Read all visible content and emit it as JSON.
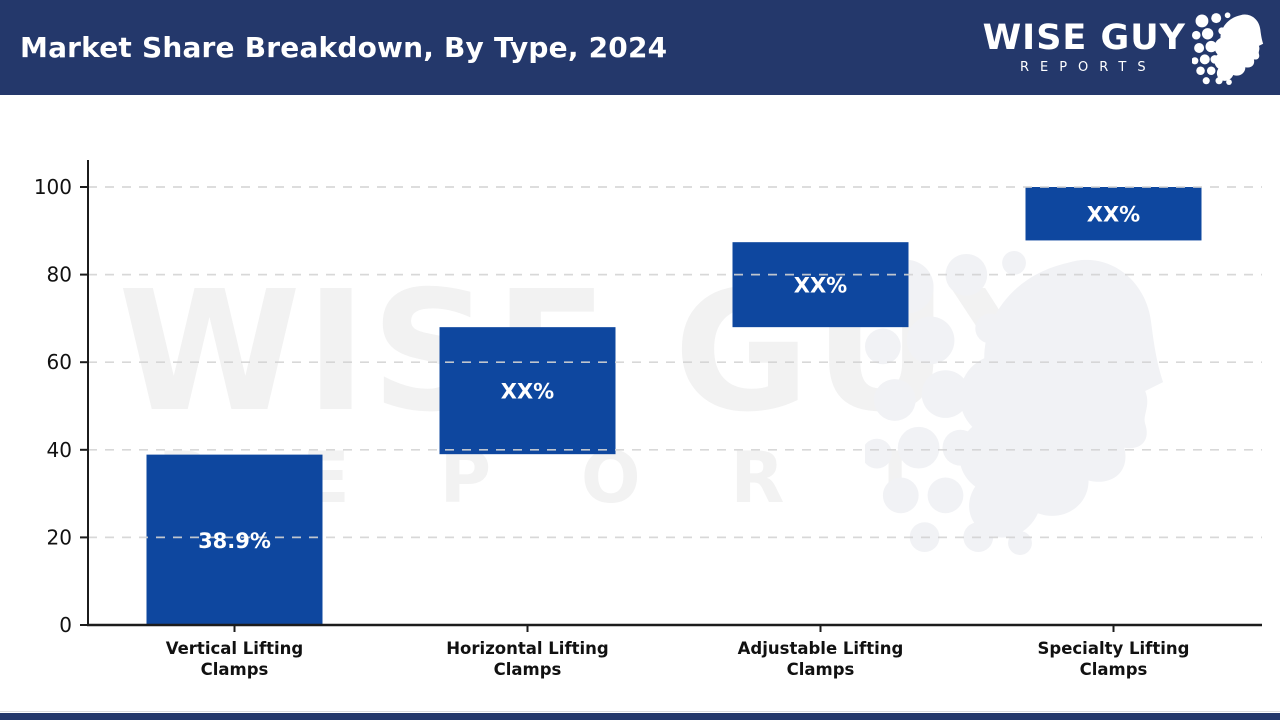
{
  "header": {
    "title": "Market Share Breakdown, By Type, 2024"
  },
  "logo": {
    "wordmark": "WISE GUY",
    "reports": "REPORTS"
  },
  "watermark": {
    "line1": "WISE GUY",
    "line2": "REPORTS"
  },
  "colors": {
    "header_bg": "#24386B",
    "footer_bg": "#24386B",
    "bar": "#0E479F",
    "bar_label": "#ffffff",
    "grid": "#d4d4d4",
    "axis": "#1c1c1c",
    "tick_text": "#111111",
    "watermark": "#f1f2f5"
  },
  "chart_data": {
    "type": "bar",
    "subtype": "stacked-waterfall",
    "title": "Market Share Breakdown, By Type, 2024",
    "xlabel": "",
    "ylabel": "",
    "ylim": [
      0,
      106
    ],
    "yticks": [
      0,
      20,
      40,
      60,
      80,
      100
    ],
    "grid": "dashed-horizontal",
    "legend": "none",
    "categories": [
      "Vertical Lifting Clamps",
      "Horizontal Lifting Clamps",
      "Adjustable Lifting Clamps",
      "Specialty Lifting Clamps"
    ],
    "categories_lines": [
      [
        "Vertical Lifting",
        "Clamps"
      ],
      [
        "Horizontal Lifting",
        "Clamps"
      ],
      [
        "Adjustable Lifting",
        "Clamps"
      ],
      [
        "Specialty Lifting",
        "Clamps"
      ]
    ],
    "segments": [
      {
        "category": "Vertical Lifting Clamps",
        "label": "38.9%",
        "start": 0,
        "end": 38.9,
        "value": 38.9
      },
      {
        "category": "Horizontal Lifting Clamps",
        "label": "XX%",
        "start": 39,
        "end": 68,
        "value": 29
      },
      {
        "category": "Adjustable Lifting Clamps",
        "label": "XX%",
        "start": 68,
        "end": 87.4,
        "value": 19.4
      },
      {
        "category": "Specialty Lifting Clamps",
        "label": "XX%",
        "start": 87.8,
        "end": 100,
        "value": 12.2
      }
    ]
  }
}
